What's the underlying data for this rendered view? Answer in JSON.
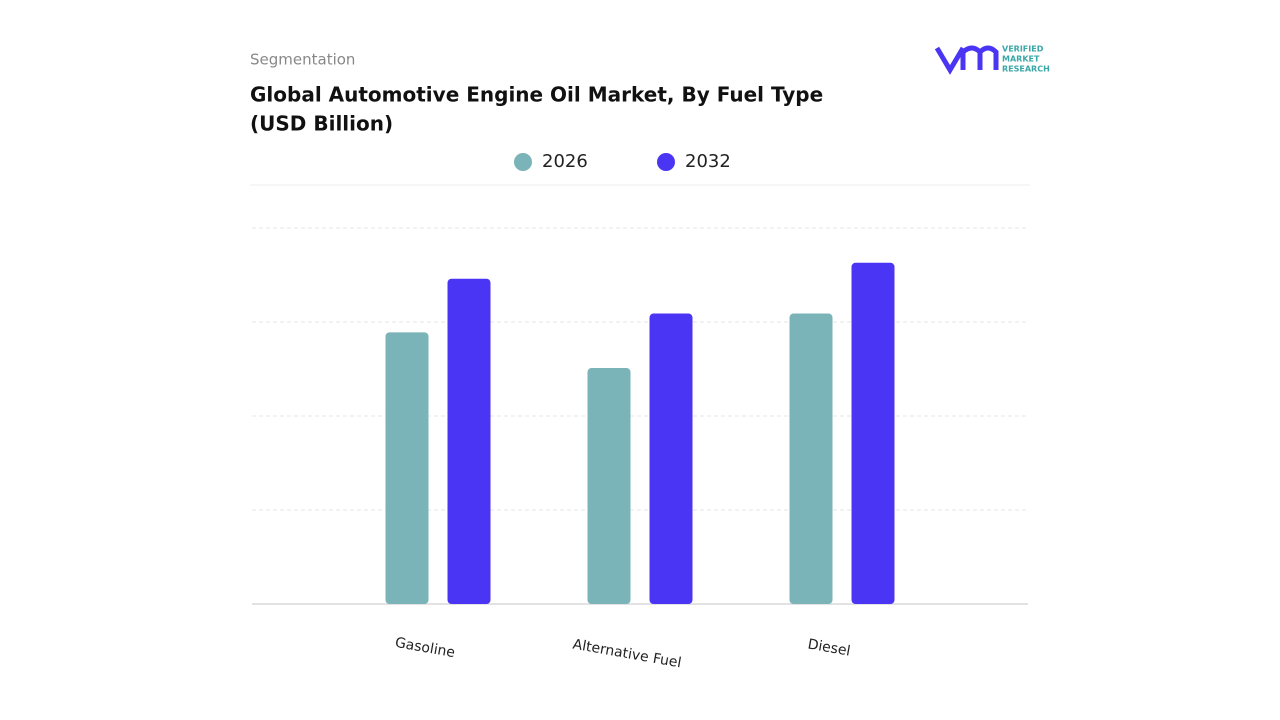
{
  "header": {
    "section": "Segmentation",
    "logo": [
      "VERIFIED",
      "MARKET",
      "RESEARCH"
    ]
  },
  "chart_data": {
    "type": "bar",
    "title": "Global Automotive Engine Oil Market, By Fuel Type",
    "subtitle": "(USD Billion)",
    "categories": [
      "Gasoline",
      "Alternative Fuel",
      "Diesel"
    ],
    "series": [
      {
        "name": "2026",
        "color": "#7ab3b8",
        "values": [
          2.89,
          2.51,
          3.09
        ]
      },
      {
        "name": "2032",
        "color": "#4b35f5",
        "values": [
          3.46,
          3.09,
          3.63
        ]
      }
    ],
    "ylim": [
      0,
      4
    ],
    "yticks": [
      0,
      1,
      2,
      3,
      4
    ],
    "grid": true
  }
}
